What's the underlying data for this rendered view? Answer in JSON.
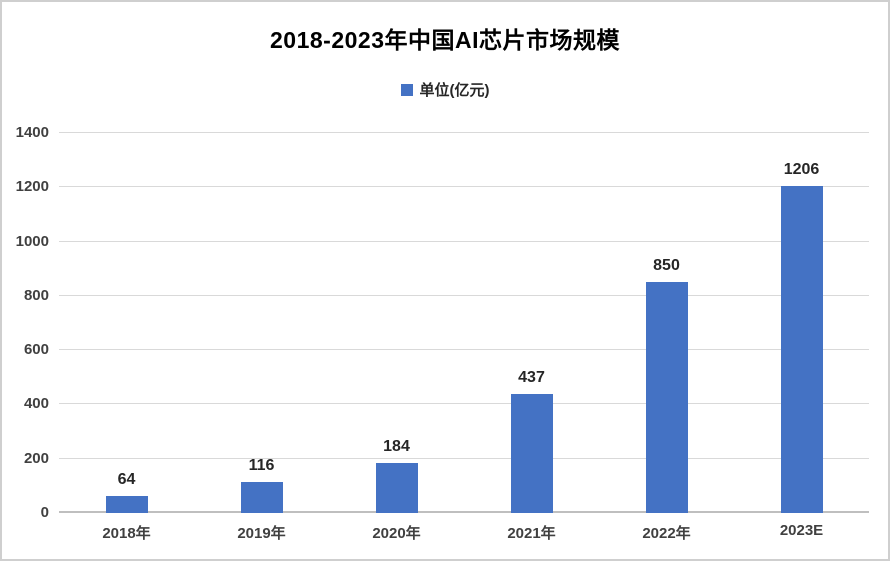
{
  "frame": {
    "background": "#ffffff",
    "border_color": "#cfcfcf"
  },
  "chart_data": {
    "type": "bar",
    "title": "2018-2023年中国AI芯片市场规模",
    "legend": [
      {
        "label": "单位(亿元)",
        "color": "#4472C4",
        "marker": "square-icon"
      }
    ],
    "legend_position": "top",
    "categories": [
      "2018年",
      "2019年",
      "2020年",
      "2021年",
      "2022年",
      "2023E"
    ],
    "series": [
      {
        "name": "单位(亿元)",
        "values": [
          64,
          116,
          184,
          437,
          850,
          1206
        ]
      }
    ],
    "values": [
      64,
      116,
      184,
      437,
      850,
      1206
    ],
    "xlabel": "",
    "ylabel": "",
    "ylim": [
      0,
      1400
    ],
    "ytick_step": 200,
    "ytick_labels": [
      "0",
      "200",
      "400",
      "600",
      "800",
      "1000",
      "1200",
      "1400"
    ],
    "grid": true,
    "bar_color": "#4472C4",
    "gridline_color": "#D9D9D9",
    "axis_line_color": "#BFBFBF",
    "value_label_color": "#262626",
    "tick_label_color": "#404040",
    "title_color": "#000000"
  }
}
